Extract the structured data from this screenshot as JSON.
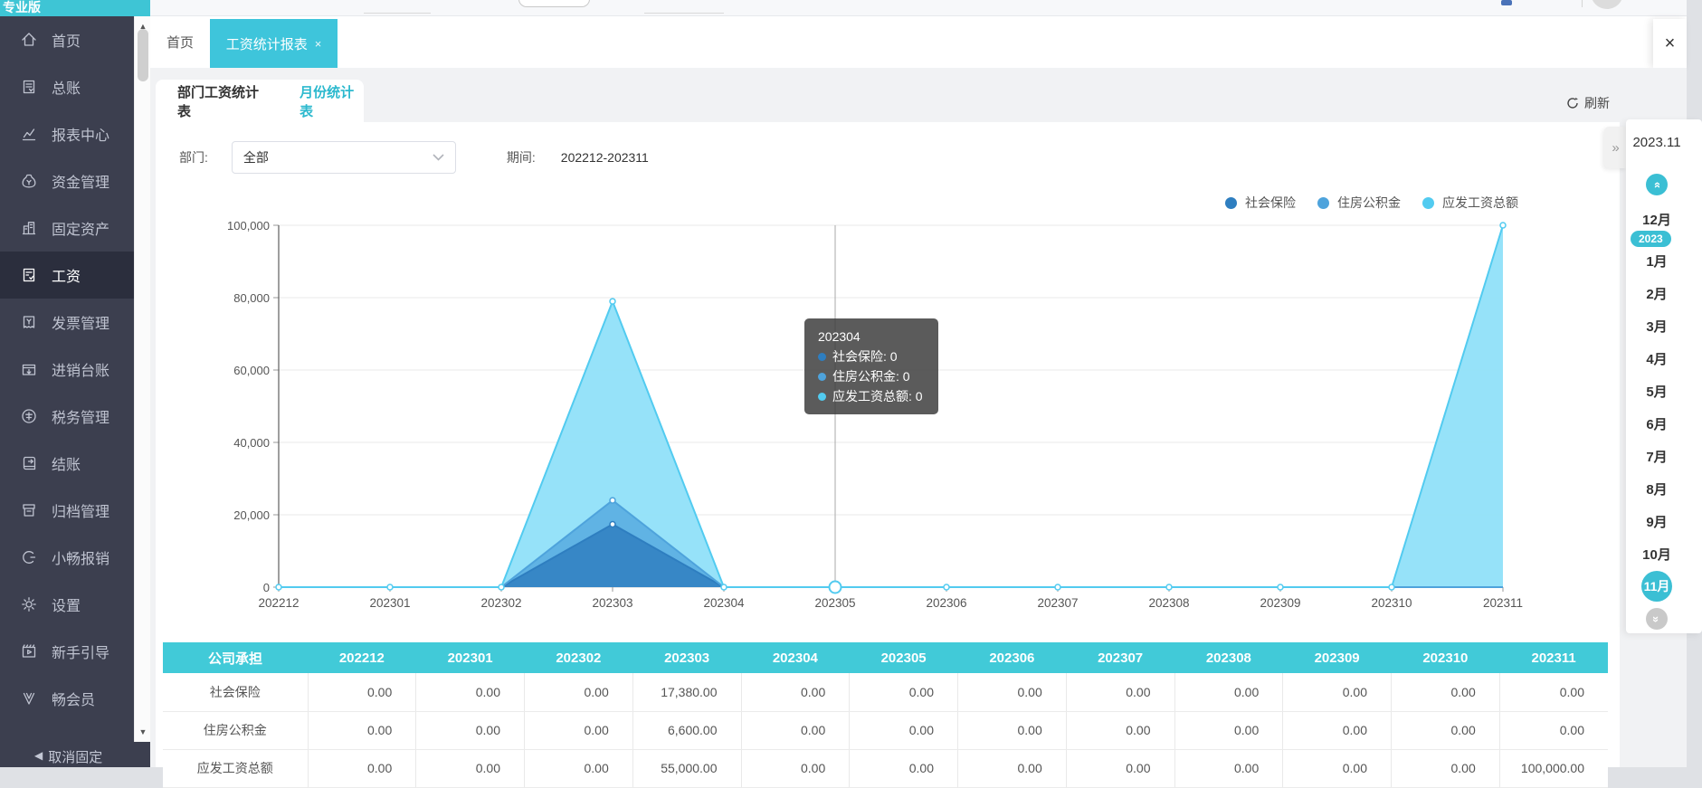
{
  "colors": {
    "accent": "#3ec8d8",
    "sidebar_bg": "#3c3f4f",
    "sidebar_active_bg": "#2b2e3d",
    "table_header_bg": "#41cad8"
  },
  "topbar": {
    "brand": "专业版"
  },
  "sidebar": {
    "items": [
      {
        "icon": "home",
        "label": "首页",
        "active": false
      },
      {
        "icon": "ledger",
        "label": "总账",
        "active": false
      },
      {
        "icon": "report",
        "label": "报表中心",
        "active": false
      },
      {
        "icon": "funds",
        "label": "资金管理",
        "active": false
      },
      {
        "icon": "assets",
        "label": "固定资产",
        "active": false
      },
      {
        "icon": "payroll",
        "label": "工资",
        "active": true
      },
      {
        "icon": "invoice",
        "label": "发票管理",
        "active": false
      },
      {
        "icon": "inventory",
        "label": "进销台账",
        "active": false
      },
      {
        "icon": "tax",
        "label": "税务管理",
        "active": false
      },
      {
        "icon": "closing",
        "label": "结账",
        "active": false
      },
      {
        "icon": "archive",
        "label": "归档管理",
        "active": false
      },
      {
        "icon": "reimburse",
        "label": "小畅报销",
        "active": false
      },
      {
        "icon": "settings",
        "label": "设置",
        "active": false
      },
      {
        "icon": "guide",
        "label": "新手引导",
        "active": false
      },
      {
        "icon": "member",
        "label": "畅会员",
        "active": false
      }
    ],
    "unpin_icon": "◀",
    "unpin_label": "取消固定",
    "scroll_up_icon": "▲",
    "scroll_down_icon": "▼"
  },
  "tabs": {
    "home_label": "首页",
    "active_label": "工资统计报表",
    "close_icon": "×",
    "panel_close_icon": "×"
  },
  "subtabs": {
    "items": [
      {
        "label": "部门工资统计表"
      },
      {
        "label": "月份统计表"
      }
    ],
    "refresh_label": "刷新"
  },
  "filters": {
    "dept_label": "部门:",
    "dept_value": "全部",
    "period_label": "期间:",
    "period_value": "202212-202311"
  },
  "chart_data": {
    "type": "area",
    "stacked": true,
    "categories": [
      "202212",
      "202301",
      "202302",
      "202303",
      "202304",
      "202305",
      "202306",
      "202307",
      "202308",
      "202309",
      "202310",
      "202311"
    ],
    "series": [
      {
        "name": "社会保险",
        "color": "#2e7ec0",
        "fill": "rgba(46,126,192,0.82)",
        "values": [
          0,
          0,
          0,
          17380,
          0,
          0,
          0,
          0,
          0,
          0,
          0,
          0
        ]
      },
      {
        "name": "住房公积金",
        "color": "#4ea3dc",
        "fill": "rgba(78,163,220,0.75)",
        "values": [
          0,
          0,
          0,
          6600,
          0,
          0,
          0,
          0,
          0,
          0,
          0,
          0
        ]
      },
      {
        "name": "应发工资总额",
        "color": "#52cbf0",
        "fill": "rgba(144,224,249,0.95)",
        "values": [
          0,
          0,
          0,
          55000,
          0,
          0,
          0,
          0,
          0,
          0,
          0,
          100000
        ]
      }
    ],
    "ylim": [
      0,
      100000
    ],
    "ytick_step": 20000,
    "grid": "horizontal",
    "legend_position": "top-right",
    "hover_index": 5
  },
  "tooltip": {
    "title": "202304",
    "rows": [
      {
        "label": "社会保险",
        "value": "0"
      },
      {
        "label": "住房公积金",
        "value": "0"
      },
      {
        "label": "应发工资总额",
        "value": "0"
      }
    ]
  },
  "table": {
    "header": [
      "公司承担",
      "202212",
      "202301",
      "202302",
      "202303",
      "202304",
      "202305",
      "202306",
      "202307",
      "202308",
      "202309",
      "202310",
      "202311"
    ],
    "rows": [
      {
        "label": "社会保险",
        "values": [
          "0.00",
          "0.00",
          "0.00",
          "17,380.00",
          "0.00",
          "0.00",
          "0.00",
          "0.00",
          "0.00",
          "0.00",
          "0.00",
          "0.00"
        ]
      },
      {
        "label": "住房公积金",
        "values": [
          "0.00",
          "0.00",
          "0.00",
          "6,600.00",
          "0.00",
          "0.00",
          "0.00",
          "0.00",
          "0.00",
          "0.00",
          "0.00",
          "0.00"
        ]
      },
      {
        "label": "应发工资总额",
        "values": [
          "0.00",
          "0.00",
          "0.00",
          "55,000.00",
          "0.00",
          "0.00",
          "0.00",
          "0.00",
          "0.00",
          "0.00",
          "0.00",
          "100,000.00"
        ]
      }
    ]
  },
  "month_panel": {
    "current": "2023.11",
    "collapse_icon": "»",
    "scroll_icon": "»",
    "items": [
      {
        "label": "12月"
      },
      {
        "year": "2023"
      },
      {
        "label": "1月"
      },
      {
        "label": "2月"
      },
      {
        "label": "3月"
      },
      {
        "label": "4月"
      },
      {
        "label": "5月"
      },
      {
        "label": "6月"
      },
      {
        "label": "7月"
      },
      {
        "label": "8月"
      },
      {
        "label": "9月"
      },
      {
        "label": "10月"
      },
      {
        "label": "11月",
        "selected": true
      }
    ]
  }
}
